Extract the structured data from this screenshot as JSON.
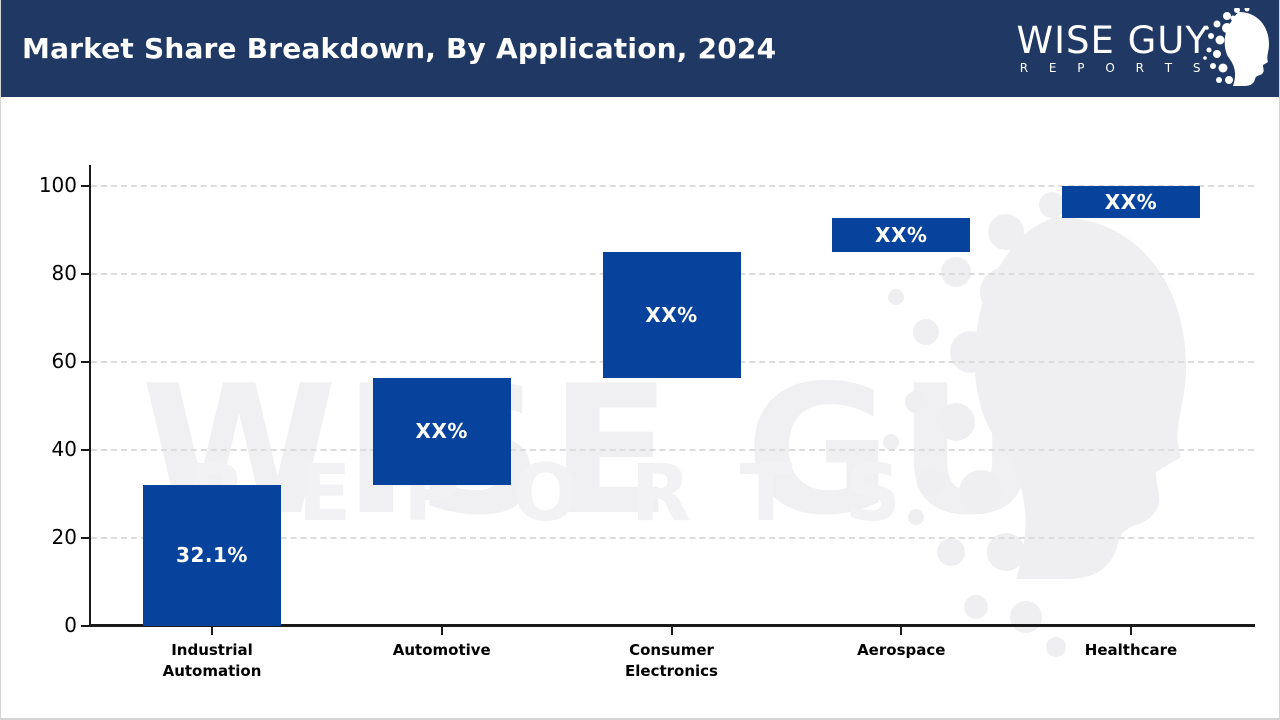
{
  "header": {
    "title": "Market Share Breakdown, By Application, 2024",
    "logo": {
      "line1": "WISE GUY",
      "line2": "R E P O R T S"
    }
  },
  "watermark": {
    "line1": "WISE GUY",
    "line2": "REPORTS"
  },
  "colors": {
    "header_bg": "#1f3864",
    "bar": "#07439c",
    "bar_label": "#ffffff",
    "grid": "#dcdcdc",
    "axis": "#1a1a1a",
    "watermark": "#f0f0f2"
  },
  "chart_data": {
    "type": "bar",
    "subtype": "waterfall",
    "title": "Market Share Breakdown, By Application, 2024",
    "xlabel": "",
    "ylabel": "",
    "ylim": [
      0,
      105
    ],
    "yticks": [
      0,
      20,
      40,
      60,
      80,
      100
    ],
    "grid": "dashed horizontal gridlines at y ticks",
    "legend": "none",
    "categories": [
      "Industrial Automation",
      "Automotive",
      "Consumer Electronics",
      "Aerospace",
      "Healthcare"
    ],
    "segments": [
      {
        "category": "Industrial Automation",
        "display_lines": [
          "Industrial",
          "Automation"
        ],
        "start": 0,
        "end": 32.1,
        "value": 32.1,
        "label": "32.1%"
      },
      {
        "category": "Automotive",
        "display_lines": [
          "Automotive"
        ],
        "start": 32.1,
        "end": 56.4,
        "value": 24.3,
        "label": "XX%"
      },
      {
        "category": "Consumer Electronics",
        "display_lines": [
          "Consumer",
          "Electronics"
        ],
        "start": 56.4,
        "end": 84.9,
        "value": 28.5,
        "label": "XX%"
      },
      {
        "category": "Aerospace",
        "display_lines": [
          "Aerospace"
        ],
        "start": 84.9,
        "end": 92.7,
        "value": 7.8,
        "label": "XX%"
      },
      {
        "category": "Healthcare",
        "display_lines": [
          "Healthcare"
        ],
        "start": 92.7,
        "end": 100,
        "value": 7.3,
        "label": "XX%"
      }
    ]
  }
}
